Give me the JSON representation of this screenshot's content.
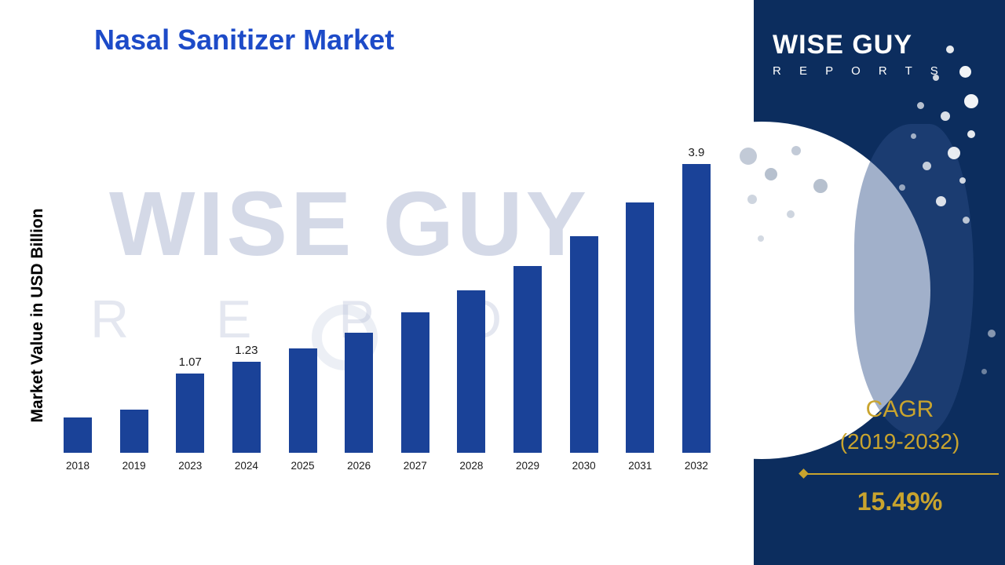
{
  "title": "Nasal Sanitizer Market",
  "watermark": {
    "line1": "WISE GUY",
    "line2": "R E P O R T S"
  },
  "logo": {
    "line1": "WISE GUY",
    "line2": "R E P O R T S"
  },
  "cagr": {
    "label": "CAGR",
    "range": "(2019-2032)",
    "value": "15.49%"
  },
  "chart_data": {
    "type": "bar",
    "title": "Nasal Sanitizer Market",
    "xlabel": "",
    "ylabel": "Market Value in USD Billion",
    "categories": [
      "2018",
      "2019",
      "2023",
      "2024",
      "2025",
      "2026",
      "2027",
      "2028",
      "2029",
      "2030",
      "2031",
      "2032"
    ],
    "values": [
      0.48,
      0.58,
      1.07,
      1.23,
      1.41,
      1.62,
      1.9,
      2.19,
      2.52,
      2.92,
      3.38,
      3.9
    ],
    "data_labels": {
      "2023": "1.07",
      "2024": "1.23",
      "2032": "3.9"
    },
    "ylim": [
      0,
      3.9
    ],
    "grid": false,
    "legend": false,
    "bar_color": "#1a4298"
  },
  "colors": {
    "title_blue": "#1d4bc8",
    "bar_blue": "#1a4298",
    "panel_navy": "#0c2d5e",
    "accent_gold": "#c9a42e"
  }
}
